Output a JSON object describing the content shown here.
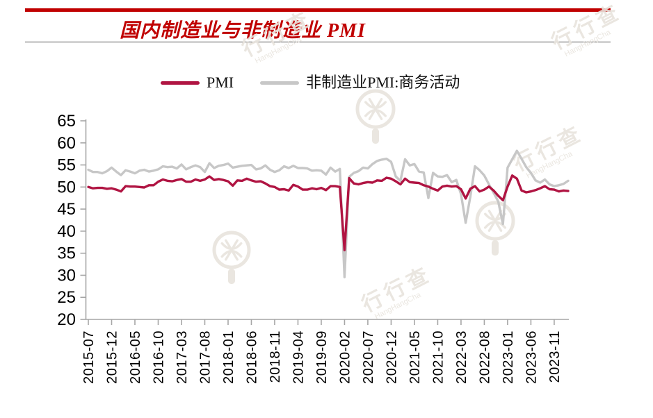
{
  "header": {
    "title": "国内制造业与非制造业 PMI",
    "accent_color": "#c00000"
  },
  "legend": {
    "items": [
      {
        "label": "PMI",
        "color": "#b01442"
      },
      {
        "label": "非制造业PMI:商务活动",
        "color": "#c7c7c7"
      }
    ]
  },
  "watermark": {
    "text": "行行查",
    "subtext": "HangHangCha",
    "color": "#e8e4dd"
  },
  "chart_data": {
    "type": "line",
    "title": "国内制造业与非制造业 PMI",
    "x_interval": "monthly",
    "grid": false,
    "legend_position": "top",
    "ylim": [
      20,
      65
    ],
    "ytick_step": 5,
    "x_tick_every": 5,
    "axis_color": "#a6a6a6",
    "tick_label_color": "#000000",
    "x_tick_labels": [
      "2015-07",
      "2015-12",
      "2016-05",
      "2016-10",
      "2017-03",
      "2017-08",
      "2018-01",
      "2018-06",
      "2018-11",
      "2019-04",
      "2019-09",
      "2020-02",
      "2020-07",
      "2020-12",
      "2021-05",
      "2021-10",
      "2022-03",
      "2022-08",
      "2023-01",
      "2023-06",
      "2023-11"
    ],
    "x": [
      "2015-07",
      "2015-08",
      "2015-09",
      "2015-10",
      "2015-11",
      "2015-12",
      "2016-01",
      "2016-02",
      "2016-03",
      "2016-04",
      "2016-05",
      "2016-06",
      "2016-07",
      "2016-08",
      "2016-09",
      "2016-10",
      "2016-11",
      "2016-12",
      "2017-01",
      "2017-02",
      "2017-03",
      "2017-04",
      "2017-05",
      "2017-06",
      "2017-07",
      "2017-08",
      "2017-09",
      "2017-10",
      "2017-11",
      "2017-12",
      "2018-01",
      "2018-02",
      "2018-03",
      "2018-04",
      "2018-05",
      "2018-06",
      "2018-07",
      "2018-08",
      "2018-09",
      "2018-10",
      "2018-11",
      "2018-12",
      "2019-01",
      "2019-02",
      "2019-03",
      "2019-04",
      "2019-05",
      "2019-06",
      "2019-07",
      "2019-08",
      "2019-09",
      "2019-10",
      "2019-11",
      "2019-12",
      "2020-01",
      "2020-02",
      "2020-03",
      "2020-04",
      "2020-05",
      "2020-06",
      "2020-07",
      "2020-08",
      "2020-09",
      "2020-10",
      "2020-11",
      "2020-12",
      "2021-01",
      "2021-02",
      "2021-03",
      "2021-04",
      "2021-05",
      "2021-06",
      "2021-07",
      "2021-08",
      "2021-09",
      "2021-10",
      "2021-11",
      "2021-12",
      "2022-01",
      "2022-02",
      "2022-03",
      "2022-04",
      "2022-05",
      "2022-06",
      "2022-07",
      "2022-08",
      "2022-09",
      "2022-10",
      "2022-11",
      "2022-12",
      "2023-01",
      "2023-02",
      "2023-03",
      "2023-04",
      "2023-05",
      "2023-06",
      "2023-07",
      "2023-08",
      "2023-09",
      "2023-10",
      "2023-11",
      "2023-12",
      "2024-01",
      "2024-02"
    ],
    "series": [
      {
        "name": "非制造业PMI:商务活动",
        "color": "#c7c7c7",
        "values": [
          53.9,
          53.4,
          53.4,
          53.1,
          53.6,
          54.4,
          53.5,
          52.7,
          53.8,
          53.5,
          53.1,
          53.7,
          53.9,
          53.5,
          53.7,
          54.0,
          54.7,
          54.5,
          54.6,
          54.2,
          55.1,
          54.0,
          54.5,
          54.9,
          54.5,
          53.4,
          55.4,
          54.3,
          54.8,
          55.0,
          55.3,
          54.4,
          54.6,
          54.8,
          54.9,
          55.0,
          54.0,
          54.2,
          54.9,
          53.9,
          53.4,
          53.8,
          54.7,
          54.3,
          54.8,
          54.3,
          54.3,
          54.2,
          53.7,
          53.8,
          53.7,
          52.8,
          54.4,
          53.5,
          54.1,
          29.6,
          52.3,
          53.2,
          53.6,
          54.4,
          54.2,
          55.2,
          55.9,
          56.2,
          56.4,
          55.7,
          52.4,
          51.4,
          56.3,
          54.9,
          55.2,
          53.5,
          53.3,
          47.5,
          53.2,
          52.4,
          52.3,
          52.7,
          51.1,
          51.6,
          48.4,
          41.9,
          47.8,
          54.7,
          53.8,
          52.6,
          50.6,
          48.7,
          46.7,
          41.6,
          54.4,
          56.3,
          58.2,
          56.4,
          54.5,
          53.2,
          51.5,
          51.0,
          51.7,
          50.6,
          50.2,
          50.4,
          50.7,
          51.4
        ]
      },
      {
        "name": "PMI",
        "color": "#b01442",
        "values": [
          50.0,
          49.7,
          49.8,
          49.8,
          49.6,
          49.7,
          49.4,
          49.0,
          50.2,
          50.1,
          50.1,
          50.0,
          49.9,
          50.4,
          50.4,
          51.2,
          51.7,
          51.4,
          51.3,
          51.6,
          51.8,
          51.2,
          51.2,
          51.7,
          51.4,
          51.7,
          52.4,
          51.6,
          51.8,
          51.6,
          51.3,
          50.3,
          51.5,
          51.4,
          51.9,
          51.5,
          51.2,
          51.3,
          50.8,
          50.2,
          50.0,
          49.4,
          49.5,
          49.2,
          50.5,
          50.1,
          49.4,
          49.4,
          49.7,
          49.5,
          49.8,
          49.3,
          50.2,
          50.2,
          50.0,
          35.7,
          52.0,
          50.8,
          50.6,
          50.9,
          51.1,
          51.0,
          51.5,
          51.4,
          52.1,
          51.9,
          51.3,
          50.6,
          51.9,
          51.1,
          51.0,
          50.9,
          50.4,
          50.1,
          49.6,
          49.2,
          50.1,
          50.3,
          50.1,
          50.2,
          49.5,
          47.4,
          49.6,
          50.2,
          49.0,
          49.4,
          50.1,
          49.2,
          48.0,
          47.0,
          50.1,
          52.6,
          51.9,
          49.2,
          48.8,
          49.0,
          49.3,
          49.7,
          50.2,
          49.5,
          49.4,
          49.0,
          49.2,
          49.1
        ]
      }
    ]
  }
}
